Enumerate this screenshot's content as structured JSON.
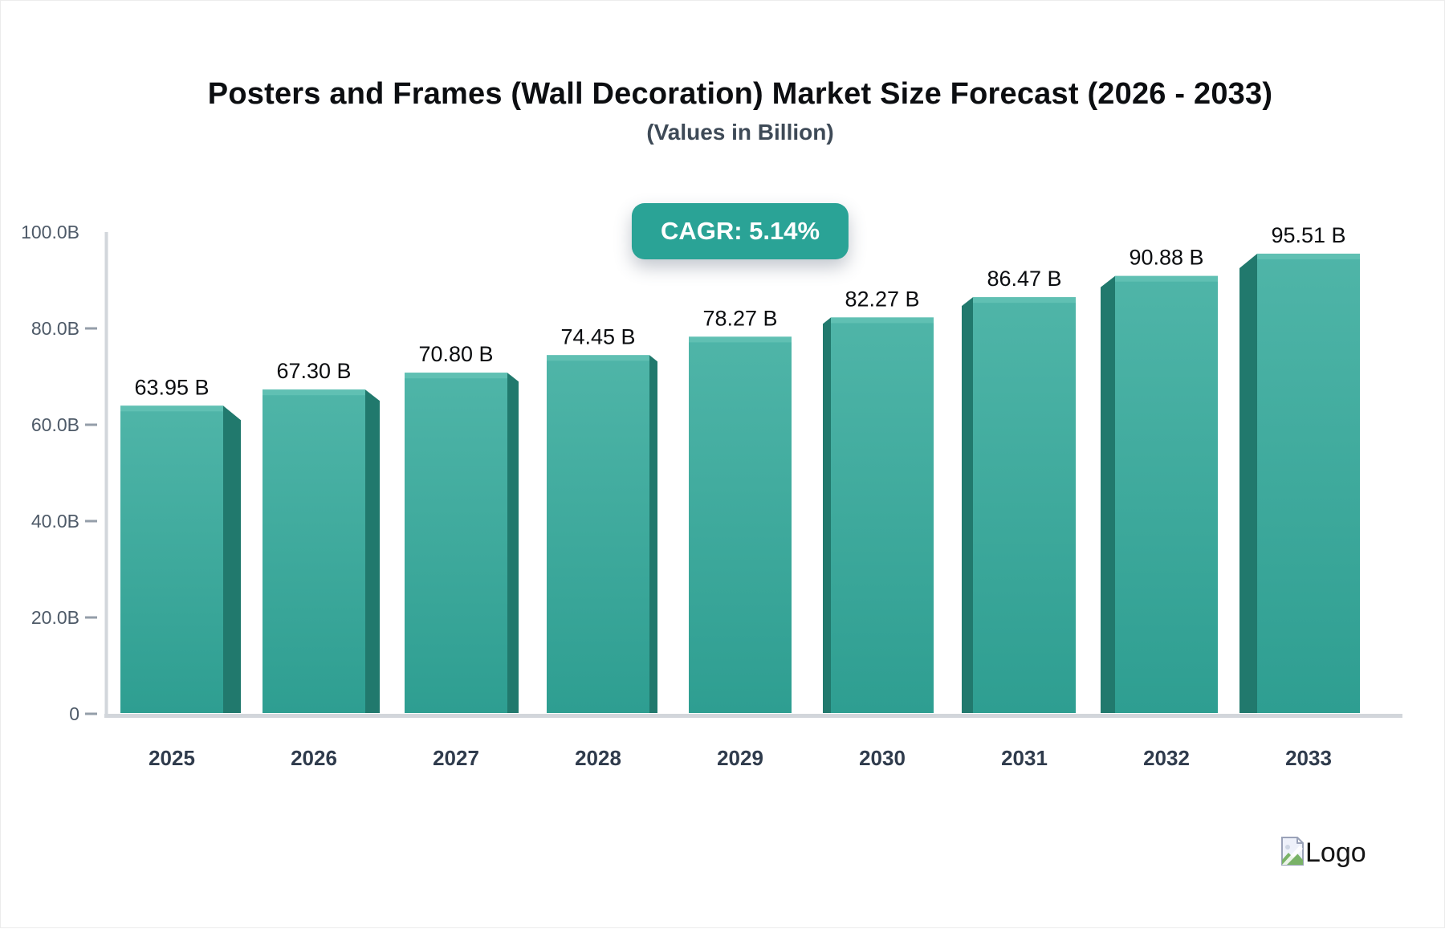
{
  "header": {
    "title": "Posters and Frames (Wall Decoration) Market Size Forecast (2026 - 2033)",
    "subtitle": "(Values in Billion)"
  },
  "badge": {
    "label": "CAGR: 5.14%"
  },
  "logo": {
    "alt": "Logo"
  },
  "chart_data": {
    "type": "bar",
    "title": "Posters and Frames (Wall Decoration) Market Size Forecast (2026 - 2033)",
    "subtitle": "(Values in Billion)",
    "cagr": "CAGR: 5.14%",
    "unit": "Billion",
    "categories": [
      "2025",
      "2026",
      "2027",
      "2028",
      "2029",
      "2030",
      "2031",
      "2032",
      "2033"
    ],
    "values": [
      63.95,
      67.3,
      70.8,
      74.45,
      78.27,
      82.27,
      86.47,
      90.88,
      95.51
    ],
    "bar_labels": [
      "63.95 B",
      "67.30 B",
      "70.80 B",
      "74.45 B",
      "78.27 B",
      "82.27 B",
      "86.47 B",
      "90.88 B",
      "95.51 B"
    ],
    "y_ticks": [
      {
        "label": "100.0B",
        "value": 100,
        "dash": false
      },
      {
        "label": "80.0B",
        "value": 80,
        "dash": true
      },
      {
        "label": "60.0B",
        "value": 60,
        "dash": true
      },
      {
        "label": "40.0B",
        "value": 40,
        "dash": true
      },
      {
        "label": "20.0B",
        "value": 20,
        "dash": true
      },
      {
        "label": "0",
        "value": 0,
        "dash": true
      }
    ],
    "ylim": [
      0,
      100
    ],
    "grid": false,
    "legend": false,
    "bar_style": "3d-perspective-center"
  },
  "colors": {
    "bar_body_top": "#4FB5A8",
    "bar_body_bottom": "#2E9E91",
    "bar_top_highlight": "#60C0B3",
    "bar_side": "#21796D",
    "badge_bg": "#2AA396",
    "badge_text": "#FFFFFF",
    "axis_line": "#D2D6DB",
    "tick": "#949EA9",
    "y_label": "#4E5A68",
    "x_label": "#2F3B4C",
    "value_label": "#0B0D10",
    "title": "#0C0E11",
    "subtitle": "#3E4A57",
    "background": "#FFFFFF"
  }
}
